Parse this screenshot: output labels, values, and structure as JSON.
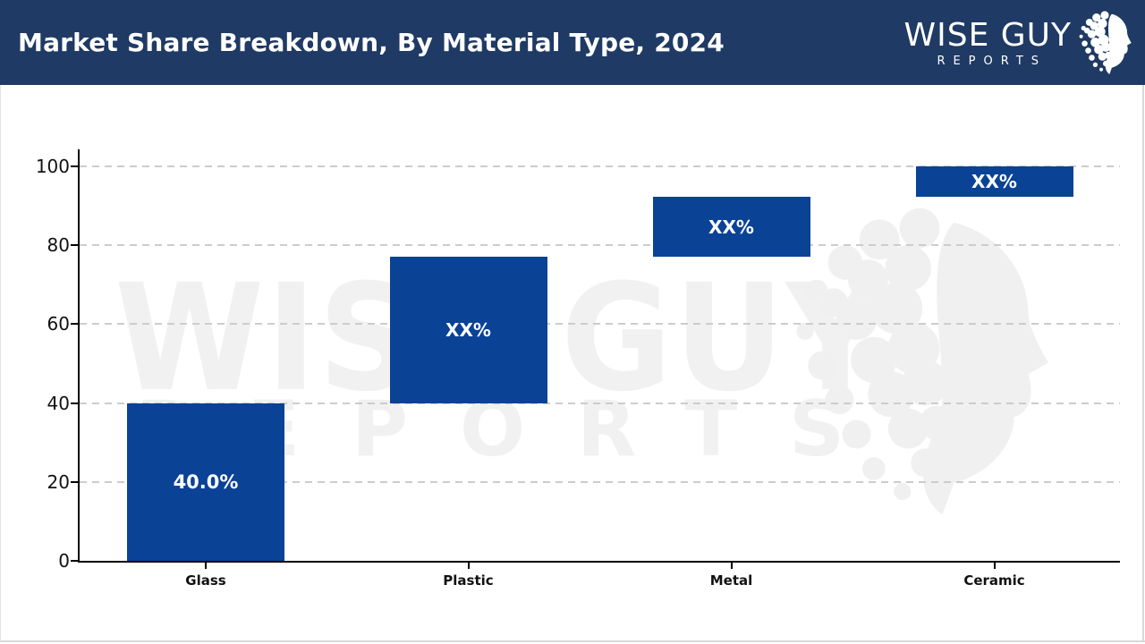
{
  "header": {
    "title": "Market Share Breakdown, By Material Type, 2024",
    "bg_color": "#1f3a64",
    "logo": {
      "name": "WISE GUY",
      "tagline": "REPORTS",
      "head_icon": "dotted-head-profile"
    }
  },
  "watermark": {
    "line1": "WISE GUY",
    "line2": "REPORTS",
    "head_icon": "dotted-head-profile"
  },
  "chart_data": {
    "type": "bar",
    "subtype": "waterfall",
    "title": "Market Share Breakdown, By Material Type, 2024",
    "categories": [
      "Glass",
      "Plastic",
      "Metal",
      "Ceramic"
    ],
    "segments": [
      {
        "category": "Glass",
        "start": 0,
        "end": 40,
        "label": "40.0%",
        "masked": false
      },
      {
        "category": "Plastic",
        "start": 40,
        "end": 77,
        "label": "XX%",
        "masked": true
      },
      {
        "category": "Metal",
        "start": 77,
        "end": 92.3,
        "label": "XX%",
        "masked": true
      },
      {
        "category": "Ceramic",
        "start": 92.3,
        "end": 100,
        "label": "XX%",
        "masked": true
      }
    ],
    "yticks": [
      0,
      20,
      40,
      60,
      80,
      100
    ],
    "ylim": [
      0,
      104
    ],
    "xlabel": "",
    "ylabel": "",
    "grid": "horizontal-dashed",
    "legend": "none",
    "bar_color": "#0a4296",
    "bar_label_color": "#ffffff",
    "gridline_color": "#cccccc",
    "axis_color": "#000000"
  }
}
